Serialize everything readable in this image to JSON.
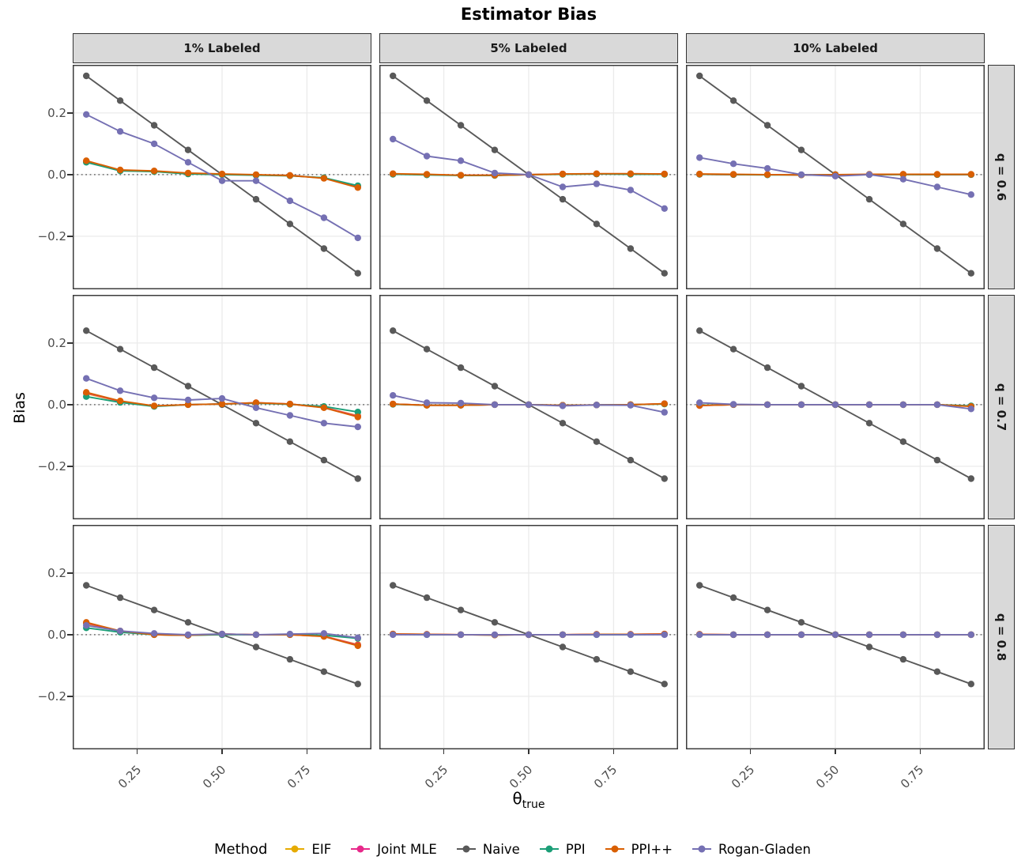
{
  "title": "Estimator Bias",
  "y_axis_title": "Bias",
  "x_axis_title": {
    "symbol": "θ",
    "subscript": "true"
  },
  "legend": {
    "title": "Method"
  },
  "methods": [
    {
      "name": "EIF",
      "color": "#E6AB02"
    },
    {
      "name": "Joint MLE",
      "color": "#E7298A"
    },
    {
      "name": "Naive",
      "color": "#595959"
    },
    {
      "name": "PPI",
      "color": "#1B9E77"
    },
    {
      "name": "PPI++",
      "color": "#D95F02"
    },
    {
      "name": "Rogan-Gladen",
      "color": "#7570B3"
    }
  ],
  "chart_data": {
    "type": "line",
    "title": "Estimator Bias",
    "xlabel": "theta_true",
    "ylabel": "Bias",
    "x": [
      0.1,
      0.2,
      0.3,
      0.4,
      0.5,
      0.6,
      0.7,
      0.8,
      0.9
    ],
    "xlim": [
      0.06,
      0.94
    ],
    "ylim": [
      -0.372,
      0.356
    ],
    "x_ticks": [
      0.25,
      0.5,
      0.75
    ],
    "x_tick_labels": [
      "0.25",
      "0.50",
      "0.75"
    ],
    "y_ticks": [
      0.2,
      0.0,
      -0.2
    ],
    "y_tick_labels": [
      "0.2",
      "0.0",
      "−0.2"
    ],
    "grid": "major",
    "zero_reference_line": {
      "y": 0,
      "style": "dotted",
      "color": "#6e6e6e"
    },
    "legend_position": "bottom",
    "col_facets": [
      "1% Labeled",
      "5% Labeled",
      "10% Labeled"
    ],
    "row_facets": [
      "q = 0.6",
      "q = 0.7",
      "q = 0.8"
    ],
    "panels": [
      {
        "row": "q = 0.6",
        "col": "1% Labeled",
        "series": {
          "EIF": [
            0.042,
            0.013,
            0.01,
            0.003,
            0.001,
            -0.001,
            -0.003,
            -0.011,
            -0.038
          ],
          "Joint MLE": [
            0.043,
            0.014,
            0.011,
            0.004,
            0.001,
            -0.001,
            -0.003,
            -0.011,
            -0.04
          ],
          "Naive": [
            0.32,
            0.24,
            0.16,
            0.08,
            0.0,
            -0.08,
            -0.16,
            -0.24,
            -0.32
          ],
          "PPI": [
            0.04,
            0.012,
            0.01,
            0.002,
            0.0,
            -0.002,
            -0.004,
            -0.01,
            -0.036
          ],
          "PPI++": [
            0.045,
            0.015,
            0.012,
            0.005,
            0.002,
            0.0,
            -0.003,
            -0.012,
            -0.042
          ],
          "Rogan-Gladen": [
            0.195,
            0.14,
            0.1,
            0.04,
            -0.02,
            -0.02,
            -0.085,
            -0.14,
            -0.205
          ]
        }
      },
      {
        "row": "q = 0.6",
        "col": "5% Labeled",
        "series": {
          "EIF": [
            0.002,
            0.0,
            -0.002,
            -0.002,
            0.0,
            0.001,
            0.002,
            0.002,
            0.001
          ],
          "Joint MLE": [
            0.002,
            0.0,
            -0.002,
            -0.002,
            0.0,
            0.002,
            0.002,
            0.002,
            0.002
          ],
          "Naive": [
            0.32,
            0.24,
            0.16,
            0.08,
            0.0,
            -0.08,
            -0.16,
            -0.24,
            -0.32
          ],
          "PPI": [
            0.001,
            -0.001,
            -0.003,
            -0.003,
            0.0,
            0.001,
            0.002,
            0.001,
            0.001
          ],
          "PPI++": [
            0.003,
            0.001,
            -0.002,
            -0.002,
            0.0,
            0.002,
            0.003,
            0.003,
            0.002
          ],
          "Rogan-Gladen": [
            0.115,
            0.06,
            0.045,
            0.005,
            0.0,
            -0.04,
            -0.03,
            -0.05,
            -0.11
          ]
        }
      },
      {
        "row": "q = 0.6",
        "col": "10% Labeled",
        "series": {
          "EIF": [
            0.001,
            0.0,
            0.0,
            -0.001,
            0.0,
            0.0,
            0.001,
            0.0,
            0.0
          ],
          "Joint MLE": [
            0.001,
            0.0,
            0.0,
            -0.001,
            0.0,
            0.0,
            0.001,
            0.0,
            0.0
          ],
          "Naive": [
            0.32,
            0.24,
            0.16,
            0.08,
            0.0,
            -0.08,
            -0.16,
            -0.24,
            -0.32
          ],
          "PPI": [
            0.001,
            0.0,
            -0.001,
            -0.001,
            0.0,
            0.0,
            0.0,
            0.0,
            0.0
          ],
          "PPI++": [
            0.002,
            0.001,
            0.0,
            -0.001,
            0.0,
            0.001,
            0.001,
            0.001,
            0.001
          ],
          "Rogan-Gladen": [
            0.055,
            0.035,
            0.02,
            0.0,
            -0.005,
            0.0,
            -0.015,
            -0.04,
            -0.065
          ]
        }
      },
      {
        "row": "q = 0.7",
        "col": "1% Labeled",
        "series": {
          "EIF": [
            0.036,
            0.01,
            -0.005,
            0.0,
            0.002,
            0.005,
            0.002,
            -0.009,
            -0.036
          ],
          "Joint MLE": [
            0.038,
            0.011,
            -0.005,
            0.0,
            0.002,
            0.006,
            0.002,
            -0.009,
            -0.038
          ],
          "Naive": [
            0.24,
            0.18,
            0.12,
            0.06,
            0.0,
            -0.06,
            -0.12,
            -0.18,
            -0.24
          ],
          "PPI": [
            0.026,
            0.007,
            -0.006,
            0.0,
            0.002,
            0.005,
            0.001,
            -0.006,
            -0.024
          ],
          "PPI++": [
            0.04,
            0.012,
            -0.004,
            0.0,
            0.002,
            0.006,
            0.002,
            -0.01,
            -0.04
          ],
          "Rogan-Gladen": [
            0.085,
            0.045,
            0.022,
            0.015,
            0.02,
            -0.01,
            -0.035,
            -0.06,
            -0.072
          ]
        }
      },
      {
        "row": "q = 0.7",
        "col": "5% Labeled",
        "series": {
          "EIF": [
            0.002,
            -0.002,
            -0.002,
            0.0,
            0.0,
            -0.002,
            -0.001,
            0.0,
            0.002
          ],
          "Joint MLE": [
            0.002,
            -0.002,
            -0.002,
            0.0,
            0.0,
            -0.002,
            -0.001,
            0.0,
            0.003
          ],
          "Naive": [
            0.24,
            0.18,
            0.12,
            0.06,
            0.0,
            -0.06,
            -0.12,
            -0.18,
            -0.24
          ],
          "PPI": [
            0.001,
            -0.002,
            -0.002,
            0.0,
            0.0,
            -0.002,
            -0.001,
            0.0,
            0.002
          ],
          "PPI++": [
            0.002,
            -0.002,
            -0.002,
            0.0,
            0.0,
            -0.002,
            -0.001,
            0.0,
            0.003
          ],
          "Rogan-Gladen": [
            0.03,
            0.006,
            0.005,
            0.0,
            0.0,
            -0.004,
            -0.001,
            -0.002,
            -0.025
          ]
        }
      },
      {
        "row": "q = 0.7",
        "col": "10% Labeled",
        "series": {
          "EIF": [
            -0.002,
            0.0,
            0.0,
            0.0,
            0.0,
            0.0,
            0.0,
            0.0,
            -0.005
          ],
          "Joint MLE": [
            -0.003,
            0.0,
            0.0,
            0.0,
            0.0,
            0.0,
            0.0,
            0.0,
            -0.005
          ],
          "Naive": [
            0.24,
            0.18,
            0.12,
            0.06,
            0.0,
            -0.06,
            -0.12,
            -0.18,
            -0.24
          ],
          "PPI": [
            -0.002,
            0.0,
            0.0,
            0.0,
            0.0,
            0.0,
            0.0,
            0.0,
            -0.004
          ],
          "PPI++": [
            -0.003,
            0.0,
            0.0,
            0.0,
            0.0,
            0.0,
            0.0,
            0.0,
            -0.006
          ],
          "Rogan-Gladen": [
            0.006,
            0.001,
            0.0,
            0.0,
            0.0,
            0.0,
            0.0,
            0.0,
            -0.014
          ]
        }
      },
      {
        "row": "q = 0.8",
        "col": "1% Labeled",
        "series": {
          "EIF": [
            0.036,
            0.011,
            0.0,
            -0.002,
            0.001,
            0.0,
            0.0,
            -0.005,
            -0.032
          ],
          "Joint MLE": [
            0.038,
            0.011,
            0.0,
            -0.002,
            0.002,
            0.0,
            0.0,
            -0.005,
            -0.034
          ],
          "Naive": [
            0.16,
            0.12,
            0.08,
            0.04,
            0.0,
            -0.04,
            -0.08,
            -0.12,
            -0.16
          ],
          "PPI": [
            0.022,
            0.008,
            0.0,
            -0.002,
            0.0,
            0.0,
            0.0,
            -0.002,
            -0.012
          ],
          "PPI++": [
            0.04,
            0.012,
            0.0,
            -0.002,
            0.002,
            0.0,
            0.0,
            -0.006,
            -0.036
          ],
          "Rogan-Gladen": [
            0.03,
            0.012,
            0.004,
            0.0,
            0.002,
            0.0,
            0.002,
            0.004,
            -0.01
          ]
        }
      },
      {
        "row": "q = 0.8",
        "col": "5% Labeled",
        "series": {
          "EIF": [
            0.002,
            0.001,
            0.0,
            -0.001,
            0.0,
            0.0,
            0.001,
            0.001,
            0.001
          ],
          "Joint MLE": [
            0.002,
            0.001,
            0.0,
            -0.001,
            0.0,
            0.0,
            0.001,
            0.001,
            0.002
          ],
          "Naive": [
            0.16,
            0.12,
            0.08,
            0.04,
            0.0,
            -0.04,
            -0.08,
            -0.12,
            -0.16
          ],
          "PPI": [
            0.001,
            0.0,
            0.0,
            -0.001,
            0.0,
            0.0,
            0.0,
            0.0,
            0.001
          ],
          "PPI++": [
            0.002,
            0.001,
            0.0,
            -0.001,
            0.0,
            0.0,
            0.001,
            0.001,
            0.002
          ],
          "Rogan-Gladen": [
            0.0,
            0.0,
            0.0,
            0.0,
            0.0,
            0.0,
            0.0,
            0.0,
            0.0
          ]
        }
      },
      {
        "row": "q = 0.8",
        "col": "10% Labeled",
        "series": {
          "EIF": [
            0.001,
            0.0,
            0.0,
            0.0,
            0.0,
            0.0,
            0.0,
            0.0,
            0.0
          ],
          "Joint MLE": [
            0.001,
            0.0,
            0.0,
            0.0,
            0.0,
            0.0,
            0.0,
            0.0,
            0.0
          ],
          "Naive": [
            0.16,
            0.12,
            0.08,
            0.04,
            0.0,
            -0.04,
            -0.08,
            -0.12,
            -0.16
          ],
          "PPI": [
            0.0,
            0.0,
            0.0,
            0.0,
            0.0,
            0.0,
            0.0,
            0.0,
            0.0
          ],
          "PPI++": [
            0.001,
            0.0,
            0.0,
            0.0,
            0.0,
            0.0,
            0.0,
            0.0,
            0.0
          ],
          "Rogan-Gladen": [
            0.0,
            0.0,
            0.0,
            0.0,
            0.0,
            0.0,
            0.0,
            0.0,
            0.0
          ]
        }
      }
    ]
  }
}
